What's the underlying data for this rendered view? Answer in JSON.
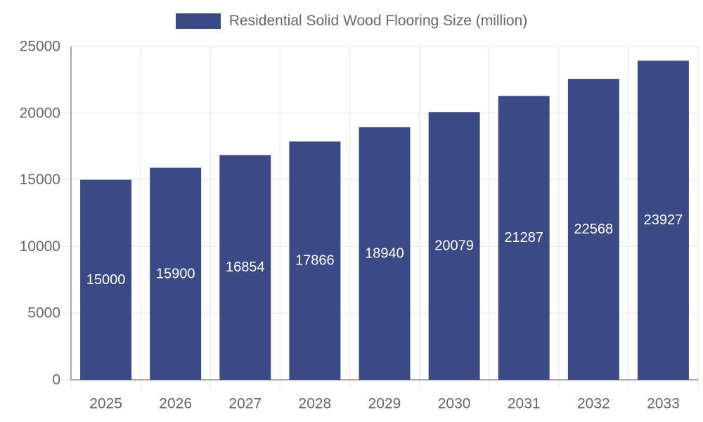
{
  "legend": {
    "label": "Residential Solid Wood Flooring Size (million)"
  },
  "chart_data": {
    "type": "bar",
    "title": "",
    "xlabel": "",
    "ylabel": "",
    "categories": [
      "2025",
      "2026",
      "2027",
      "2028",
      "2029",
      "2030",
      "2031",
      "2032",
      "2033"
    ],
    "series": [
      {
        "name": "Residential Solid Wood Flooring Size (million)",
        "values": [
          15000,
          15900,
          16854,
          17866,
          18940,
          20079,
          21287,
          22568,
          23927
        ]
      }
    ],
    "ylim": [
      0,
      25000
    ],
    "yticks": [
      0,
      5000,
      10000,
      15000,
      20000,
      25000
    ],
    "grid": "both",
    "legend_position": "top-center",
    "value_labels": "inside-center-white",
    "colors": {
      "bar": "#3a4a85",
      "grid": "#e4e5ea",
      "axis_border": "#aaaaaa",
      "tick_text": "#666666",
      "value_label": "#ffffff",
      "background": "#ffffff"
    }
  }
}
